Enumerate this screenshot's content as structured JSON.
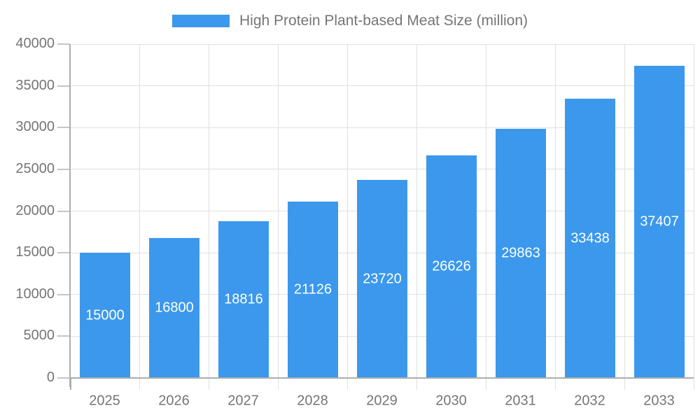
{
  "legend": {
    "label": "High Protein Plant-based Meat Size (million)"
  },
  "chart_data": {
    "type": "bar",
    "title": "High Protein Plant-based Meat Size (million)",
    "categories": [
      "2025",
      "2026",
      "2027",
      "2028",
      "2029",
      "2030",
      "2031",
      "2032",
      "2033"
    ],
    "values": [
      15000,
      16800,
      18816,
      21126,
      23720,
      26626,
      29863,
      33438,
      37407
    ],
    "xlabel": "",
    "ylabel": "",
    "ylim": [
      0,
      40000
    ],
    "ytick_step": 5000,
    "yticks": [
      0,
      5000,
      10000,
      15000,
      20000,
      25000,
      30000,
      35000,
      40000
    ],
    "grid": true,
    "legend_position": "top",
    "bar_label_position": "inside-middle",
    "colors": {
      "bar": "#3b98ec",
      "bar_label": "#ffffff",
      "grid": "#e0e0e0",
      "axis": "#adadad",
      "tick": "#c6c6c6",
      "text": "#757575"
    }
  }
}
